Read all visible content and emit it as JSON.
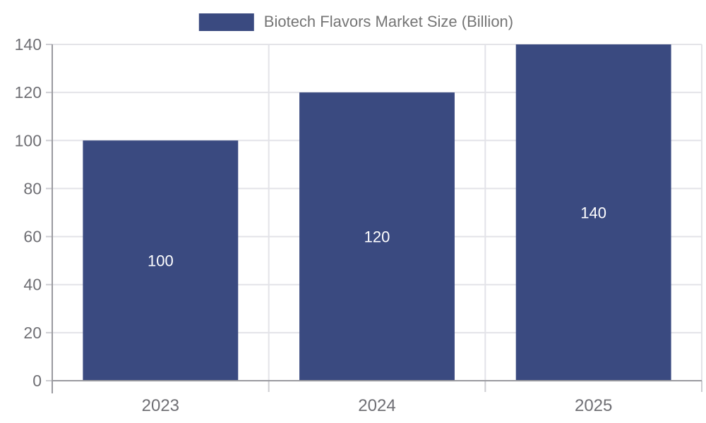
{
  "legend": {
    "label": "Biotech Flavors Market Size (Billion)"
  },
  "chart_data": {
    "type": "bar",
    "title": "Biotech Flavors Market Size (Billion)",
    "categories": [
      "2023",
      "2024",
      "2025"
    ],
    "values": [
      100,
      120,
      140
    ],
    "bar_labels": [
      "100",
      "120",
      "140"
    ],
    "xlabel": "",
    "ylabel": "",
    "ylim": [
      0,
      140
    ],
    "yticks": [
      0,
      20,
      40,
      60,
      80,
      100,
      120,
      140
    ],
    "grid": true,
    "legend_position": "top-center",
    "colors": {
      "bar": "#3A4A80",
      "grid_line": "#E3E3E8",
      "axis_line": "#9A9A9F",
      "tick_mark": "#CDCDD2",
      "tick_label": "#6F6F74",
      "legend_text": "#757575",
      "bar_label": "#FFFFFF",
      "background": "#FFFFFF"
    }
  }
}
